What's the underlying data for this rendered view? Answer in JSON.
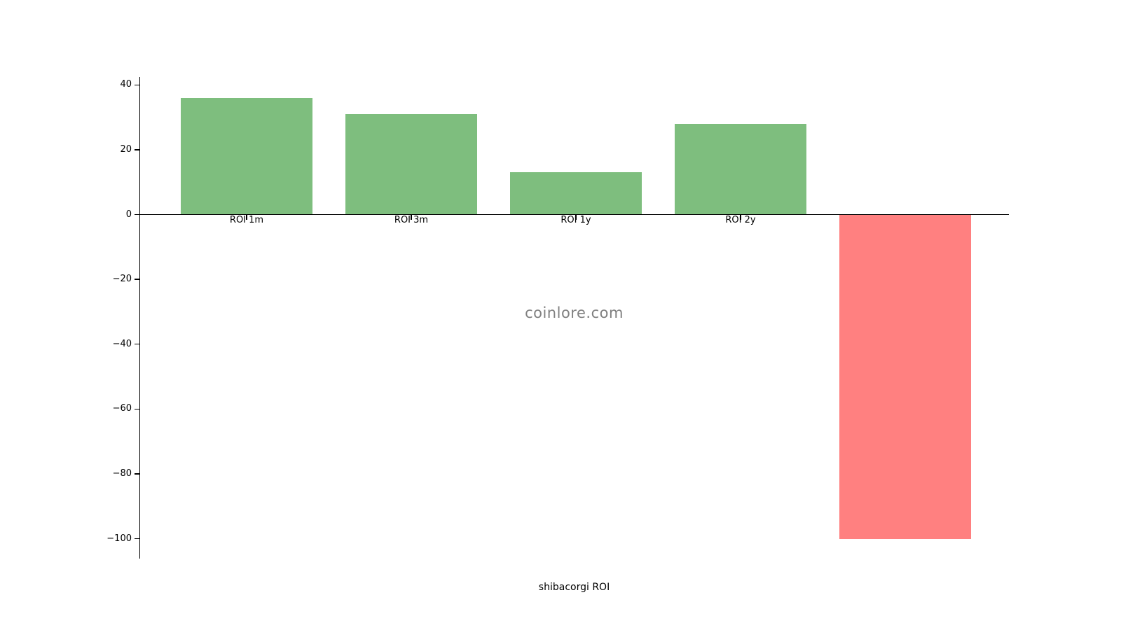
{
  "page": {
    "background": "#ffffff"
  },
  "watermark": {
    "text": "coinlore.com",
    "color": "#808080"
  },
  "chart_data": {
    "type": "bar",
    "title": "shibacorgi ROI",
    "title_position": "bottom",
    "categories": [
      "ROI 1m",
      "ROI 3m",
      "ROI 1y",
      "ROI 2y",
      ""
    ],
    "values": [
      36,
      31,
      13,
      28,
      -100
    ],
    "bar_colors": [
      "#7ebe7e",
      "#7ebe7e",
      "#7ebe7e",
      "#7ebe7e",
      "#ff8080"
    ],
    "positive_color": "#7ebe7e",
    "negative_color": "#ff8080",
    "yticks": [
      40,
      20,
      0,
      -20,
      -40,
      -60,
      -80,
      -100
    ],
    "ylim": [
      -106,
      42
    ],
    "xlabel": "",
    "ylabel": "",
    "grid": false,
    "legend": null,
    "axis_color": "#000000",
    "tick_label_color": "#000000",
    "watermark": "coinlore.com"
  }
}
